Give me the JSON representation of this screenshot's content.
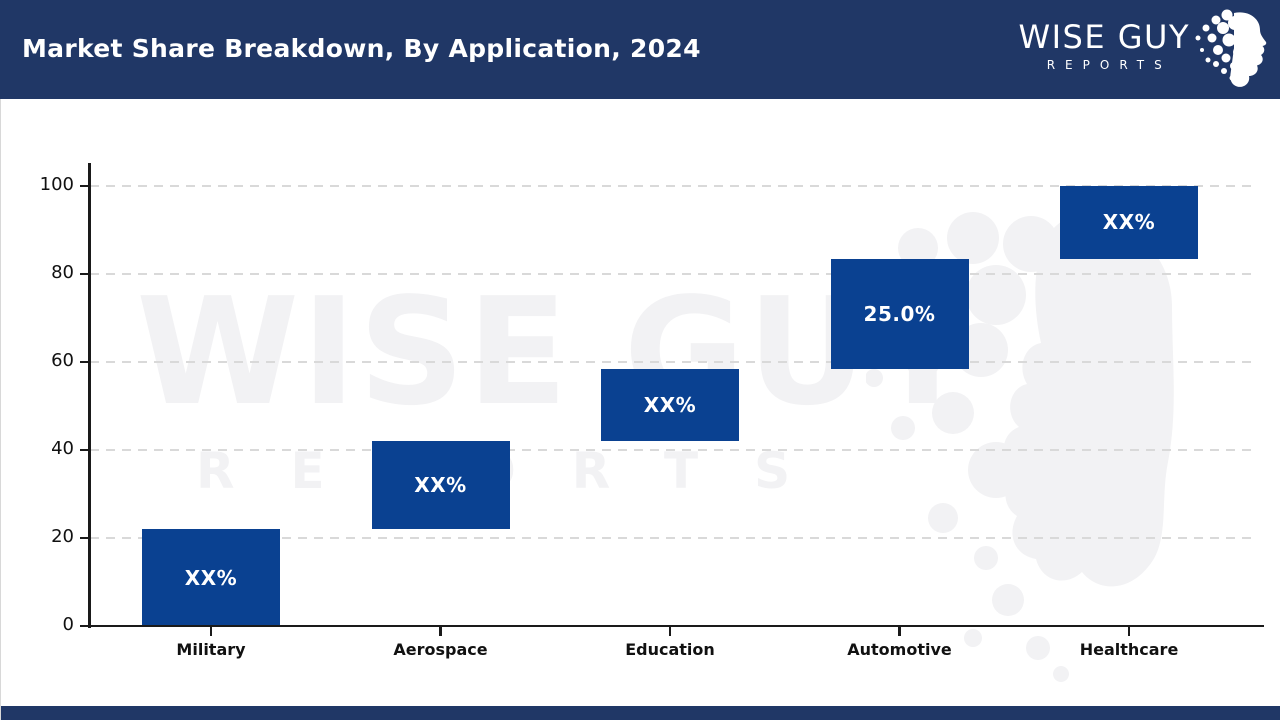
{
  "header": {
    "title": "Market Share Breakdown, By Application, 2024",
    "logo": {
      "line1": "WISE GUY",
      "line2": "REPORTS"
    }
  },
  "watermark": {
    "line1": "WISE GUY",
    "line2": "REPORTS"
  },
  "colors": {
    "header_bg": "#203766",
    "footer_bg": "#203766",
    "bar": "#0a4191",
    "bar_label": "#ffffff",
    "grid": "#d9d9d9",
    "axis": "#1a1a1a",
    "watermark": "#f2f2f4"
  },
  "chart_data": {
    "type": "bar",
    "subtype": "floating-waterfall",
    "title": "Market Share Breakdown, By Application, 2024",
    "xlabel": "",
    "ylabel": "",
    "ylim": [
      0,
      105
    ],
    "yticks": [
      0,
      20,
      40,
      60,
      80,
      100
    ],
    "grid": "horizontal-dashed",
    "legend": "none",
    "categories": [
      "Military",
      "Aerospace",
      "Education",
      "Automotive",
      "Healthcare"
    ],
    "bars": [
      {
        "category": "Military",
        "start": 0,
        "end": 22,
        "value": 22,
        "label": "XX%"
      },
      {
        "category": "Aerospace",
        "start": 22,
        "end": 42,
        "value": 20,
        "label": "XX%"
      },
      {
        "category": "Education",
        "start": 42,
        "end": 58.5,
        "value": 16.5,
        "label": "XX%"
      },
      {
        "category": "Automotive",
        "start": 58.5,
        "end": 83.5,
        "value": 25,
        "label": "25.0%"
      },
      {
        "category": "Healthcare",
        "start": 83.5,
        "end": 100,
        "value": 16.5,
        "label": "XX%"
      }
    ]
  }
}
